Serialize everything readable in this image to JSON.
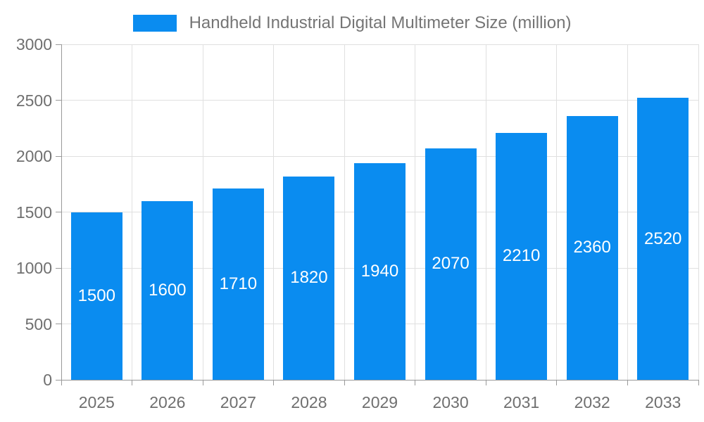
{
  "chart_data": {
    "type": "bar",
    "title": "Handheld Industrial Digital Multimeter Size (million)",
    "categories": [
      "2025",
      "2026",
      "2027",
      "2028",
      "2029",
      "2030",
      "2031",
      "2032",
      "2033"
    ],
    "values": [
      1500,
      1600,
      1710,
      1820,
      1940,
      2070,
      2210,
      2360,
      2520
    ],
    "xlabel": "",
    "ylabel": "",
    "ylim": [
      0,
      3000
    ],
    "yticks": [
      0,
      500,
      1000,
      1500,
      2000,
      2500,
      3000
    ],
    "grid": true,
    "legend_position": "top-center",
    "bar_labels_visible": true,
    "colors": {
      "bar": "#0a8cf0",
      "bar_label": "#ffffff",
      "grid_line": "#e0e0e0",
      "axis_line": "#999999",
      "tick_label": "#6f6f6f",
      "legend_text": "#757575",
      "background": "#ffffff"
    }
  }
}
